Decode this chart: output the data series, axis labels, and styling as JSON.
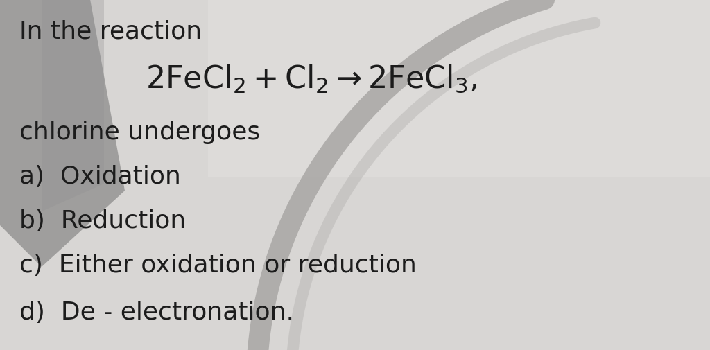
{
  "background_color": "#d8d6d4",
  "text_color": "#1c1c1c",
  "title_line": "In the reaction",
  "subtitle_line": "chlorine undergoes",
  "options": [
    "a)  Oxidation",
    "b)  Reduction",
    "c)  Either oxidation or reduction",
    "d)  De - electronation."
  ],
  "title_fontsize": 26,
  "eq_fontsize": 32,
  "option_fontsize": 26,
  "subtitle_fontsize": 26,
  "figsize": [
    10.24,
    5.06
  ],
  "dpi": 100,
  "arc_color": "#a8a6a4",
  "arc_color2": "#b8b6b4",
  "shadow_color": "#8a8480",
  "light_bg": "#e2e0de"
}
